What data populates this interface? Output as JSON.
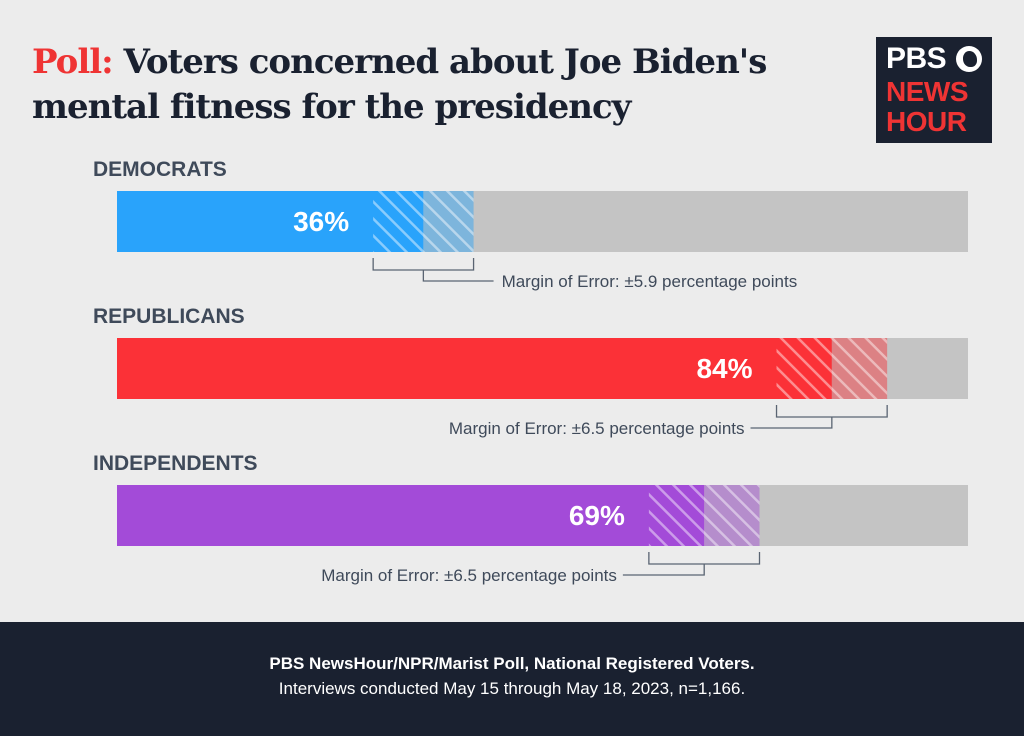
{
  "headline": {
    "lead": "Poll:",
    "rest": " Voters concerned about Joe Biden's mental fitness for the presidency"
  },
  "logo": {
    "line1": "PBS",
    "line2": "NEWS",
    "line3": "HOUR"
  },
  "colors": {
    "background": "#ececec",
    "track": "#c4c4c4",
    "democrats": "#29a3fb",
    "republicans": "#fb3137",
    "independents": "#a34bd8",
    "text_dark": "#1a2130",
    "text_muted": "#3f4a5a",
    "accent_red": "#ef3434"
  },
  "chart_data": {
    "type": "bar",
    "orientation": "horizontal",
    "title": "Voters concerned about Joe Biden's mental fitness for the presidency",
    "xlim": [
      0,
      100
    ],
    "unit": "%",
    "categories": [
      "DEMOCRATS",
      "REPUBLICANS",
      "INDEPENDENTS"
    ],
    "values": [
      36,
      84,
      69
    ],
    "value_labels": [
      "36%",
      "84%",
      "69%"
    ],
    "margin_of_error": [
      5.9,
      6.5,
      6.5
    ],
    "moe_labels": [
      "Margin of Error: ±5.9 percentage points",
      "Margin of Error: ±6.5 percentage points",
      "Margin of Error: ±6.5 percentage points"
    ],
    "moe_label_side": [
      "right",
      "left",
      "left"
    ],
    "colors": [
      "#29a3fb",
      "#fb3137",
      "#a34bd8"
    ],
    "grid": false,
    "legend": "none"
  },
  "footer": {
    "source": "PBS NewsHour/NPR/Marist Poll, National Registered Voters.",
    "note": "Interviews conducted May 15 through May 18, 2023, n=1,166."
  }
}
